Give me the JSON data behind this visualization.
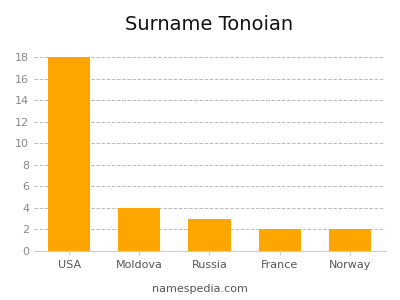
{
  "title": "Surname Tonoian",
  "categories": [
    "USA",
    "Moldova",
    "Russia",
    "France",
    "Norway"
  ],
  "values": [
    18,
    4,
    3,
    2,
    2
  ],
  "bar_color": "#FFA500",
  "background_color": "#ffffff",
  "ylim": [
    0,
    19.5
  ],
  "yticks": [
    0,
    2,
    4,
    6,
    8,
    10,
    12,
    14,
    16,
    18
  ],
  "grid_color": "#bbbbbb",
  "title_fontsize": 14,
  "tick_fontsize": 8,
  "footer_text": "namespedia.com",
  "footer_fontsize": 8
}
